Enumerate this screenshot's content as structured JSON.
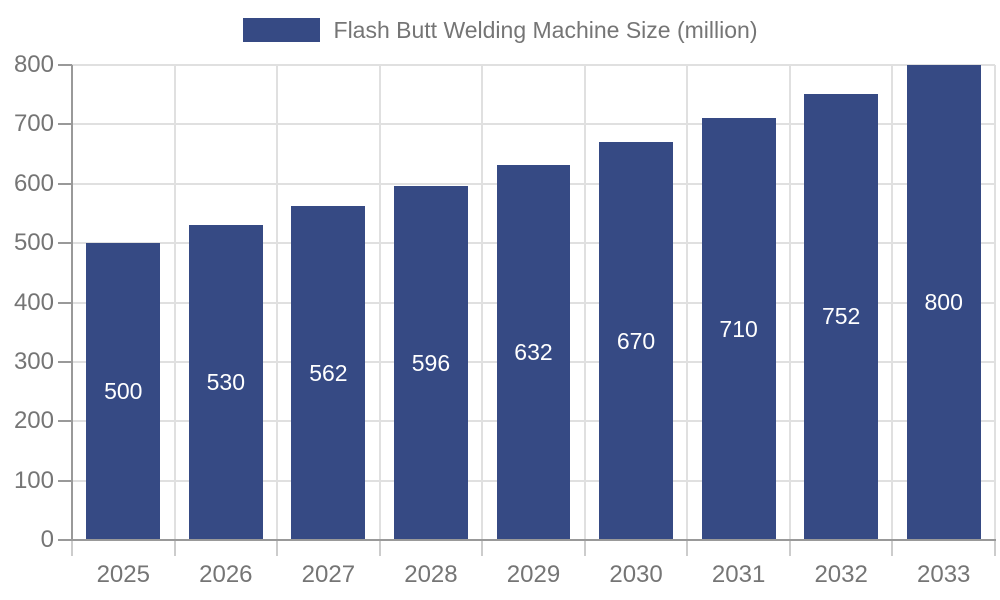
{
  "legend": {
    "label": "Flash Butt Welding Machine Size (million)"
  },
  "chart_data": {
    "type": "bar",
    "title": "",
    "categories": [
      "2025",
      "2026",
      "2027",
      "2028",
      "2029",
      "2030",
      "2031",
      "2032",
      "2033"
    ],
    "series": [
      {
        "name": "Flash Butt Welding Machine Size (million)",
        "values": [
          500,
          530,
          562,
          596,
          632,
          670,
          710,
          752,
          800
        ]
      }
    ],
    "xlabel": "",
    "ylabel": "",
    "ylim": [
      0,
      800
    ],
    "yticks": [
      0,
      100,
      200,
      300,
      400,
      500,
      600,
      700,
      800
    ],
    "grid": true,
    "legend_position": "top",
    "value_labels_inside_bars": true,
    "colors": {
      "bar": "#364a84",
      "grid": "#e0e0e0",
      "axis": "#999999",
      "xtick": "#cccccc",
      "tick_label": "#757575",
      "value_label": "#ffffff",
      "background": "#ffffff"
    }
  }
}
